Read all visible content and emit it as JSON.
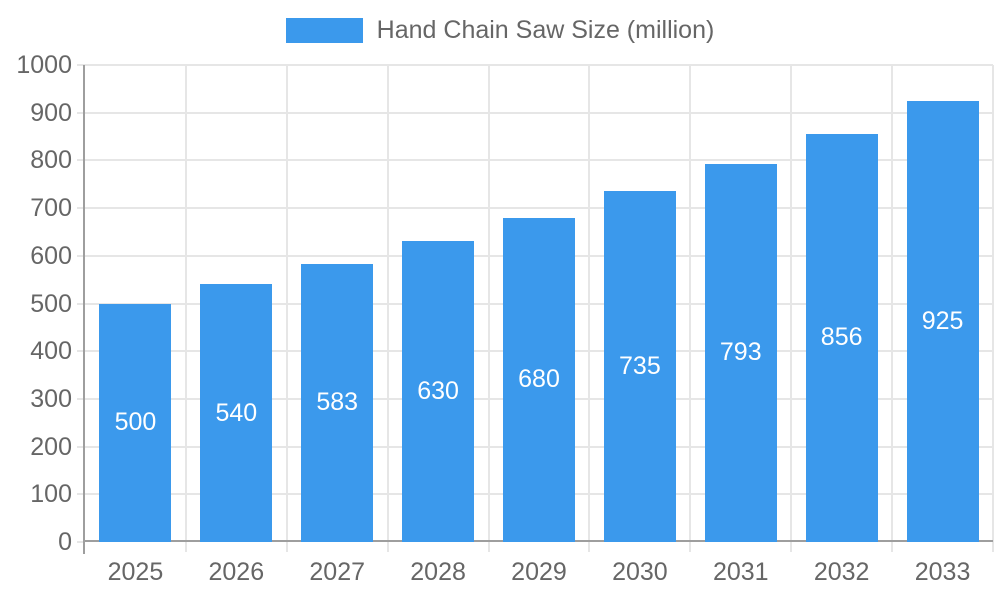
{
  "legend": {
    "label": "Hand Chain Saw Size (million)"
  },
  "colors": {
    "bar": "#3B99EC",
    "grid": "#E6E6E6",
    "axis": "#9E9E9E",
    "tick_text": "#666666",
    "bar_label": "#FFFFFF",
    "background": "#FFFFFF"
  },
  "chart_data": {
    "type": "bar",
    "title": "Hand Chain Saw Size (million)",
    "categories": [
      "2025",
      "2026",
      "2027",
      "2028",
      "2029",
      "2030",
      "2031",
      "2032",
      "2033"
    ],
    "values": [
      500,
      540,
      583,
      630,
      680,
      735,
      793,
      856,
      925
    ],
    "xlabel": "",
    "ylabel": "",
    "ylim": [
      0,
      1000
    ],
    "ytick_step": 100,
    "grid": true,
    "legend_position": "top",
    "data_labels": "centered-white"
  }
}
